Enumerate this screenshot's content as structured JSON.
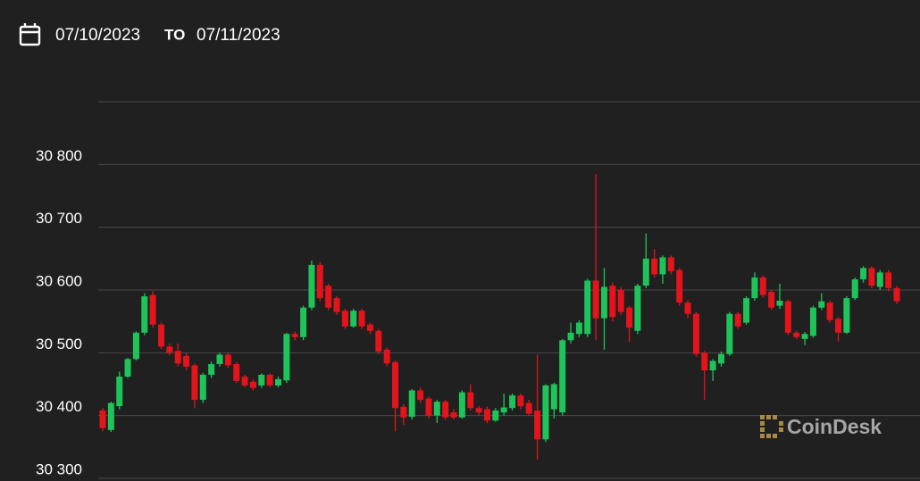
{
  "chart_data": {
    "type": "candlestick",
    "date_from": "07/10/2023",
    "date_separator": "TO",
    "date_to": "07/11/2023",
    "watermark": "CoinDesk",
    "up_color": "#1ec45a",
    "down_color": "#e3141c",
    "grid": true,
    "ylim": [
      30300,
      30900
    ],
    "yticks": [
      {
        "value": 30300,
        "label": "30 300"
      },
      {
        "value": 30400,
        "label": "30 400"
      },
      {
        "value": 30500,
        "label": "30 500"
      },
      {
        "value": 30600,
        "label": "30 600"
      },
      {
        "value": 30700,
        "label": "30 700"
      },
      {
        "value": 30800,
        "label": "30 800"
      }
    ],
    "open": [
      30408,
      30377,
      30415,
      30462,
      30490,
      30532,
      30592,
      30545,
      30510,
      30503,
      30495,
      30480,
      30425,
      30465,
      30482,
      30497,
      30482,
      30462,
      30454,
      30448,
      30465,
      30448,
      30456,
      30530,
      30525,
      30572,
      30640,
      30607,
      30587,
      30567,
      30542,
      30567,
      30545,
      30535,
      30505,
      30485,
      30414,
      30398,
      30440,
      30427,
      30400,
      30422,
      30405,
      30397,
      30437,
      30412,
      30410,
      30392,
      30405,
      30412,
      30432,
      30420,
      30408,
      30362,
      30410,
      30405,
      30520,
      30530,
      30530,
      30615,
      30555,
      30607,
      30600,
      30572,
      30535,
      30607,
      30650,
      30625,
      30652,
      30632,
      30580,
      30562,
      30500,
      30472,
      30483,
      30498,
      30562,
      30548,
      30587,
      30620,
      30597,
      30575,
      30582,
      30532,
      30522,
      30527,
      30572,
      30580,
      30554,
      30532,
      30587,
      30617,
      30635,
      30605,
      30628,
      30603
    ],
    "close": [
      30380,
      30420,
      30462,
      30490,
      30532,
      30590,
      30545,
      30510,
      30500,
      30483,
      30478,
      30425,
      30465,
      30482,
      30497,
      30480,
      30455,
      30448,
      30444,
      30465,
      30448,
      30458,
      30530,
      30525,
      30572,
      30640,
      30587,
      30572,
      30565,
      30542,
      30567,
      30542,
      30535,
      30502,
      30483,
      30412,
      30397,
      30440,
      30425,
      30400,
      30422,
      30397,
      30397,
      30437,
      30412,
      30405,
      30392,
      30408,
      30413,
      30432,
      30415,
      30403,
      30362,
      30448,
      30450,
      30520,
      30532,
      30548,
      30615,
      30555,
      30605,
      30557,
      30565,
      30540,
      30607,
      30650,
      30625,
      30652,
      30630,
      30580,
      30562,
      30498,
      30472,
      30487,
      30498,
      30562,
      30542,
      30587,
      30620,
      30592,
      30572,
      30583,
      30532,
      30525,
      30530,
      30572,
      30582,
      30552,
      30532,
      30587,
      30617,
      30635,
      30607,
      30628,
      30603,
      30582
    ],
    "high": [
      30412,
      30422,
      30470,
      30492,
      30534,
      30595,
      30598,
      30548,
      30515,
      30515,
      30500,
      30483,
      30468,
      30486,
      30500,
      30500,
      30485,
      30465,
      30458,
      30467,
      30467,
      30462,
      30532,
      30534,
      30575,
      30647,
      30644,
      30610,
      30590,
      30570,
      30570,
      30570,
      30548,
      30538,
      30508,
      30488,
      30418,
      30442,
      30445,
      30430,
      30425,
      30425,
      30410,
      30440,
      30450,
      30415,
      30414,
      30412,
      30435,
      30435,
      30435,
      30425,
      30497,
      30450,
      30452,
      30522,
      30548,
      30552,
      30618,
      30785,
      30635,
      30612,
      30605,
      30575,
      30610,
      30690,
      30665,
      30655,
      30655,
      30635,
      30584,
      30565,
      30503,
      30490,
      30502,
      30565,
      30565,
      30590,
      30628,
      30623,
      30600,
      30610,
      30585,
      30535,
      30533,
      30575,
      30595,
      30583,
      30557,
      30590,
      30620,
      30638,
      30638,
      30632,
      30632,
      30606
    ],
    "low": [
      30375,
      30374,
      30410,
      30460,
      30488,
      30528,
      30540,
      30506,
      30496,
      30478,
      30472,
      30412,
      30420,
      30460,
      30478,
      30476,
      30452,
      30445,
      30440,
      30444,
      30445,
      30445,
      30452,
      30520,
      30520,
      30568,
      30583,
      30568,
      30560,
      30538,
      30540,
      30538,
      30530,
      30498,
      30478,
      30375,
      30385,
      30394,
      30420,
      30395,
      30388,
      30393,
      30394,
      30395,
      30408,
      30400,
      30388,
      30390,
      30400,
      30408,
      30410,
      30400,
      30330,
      30358,
      30395,
      30400,
      30515,
      30525,
      30525,
      30520,
      30505,
      30550,
      30560,
      30517,
      30530,
      30603,
      30620,
      30610,
      30625,
      30575,
      30555,
      30494,
      30425,
      30455,
      30478,
      30495,
      30538,
      30545,
      30583,
      30588,
      30568,
      30570,
      30528,
      30522,
      30512,
      30524,
      30568,
      30548,
      30518,
      30530,
      30584,
      30612,
      30603,
      30600,
      30598,
      30578
    ]
  }
}
